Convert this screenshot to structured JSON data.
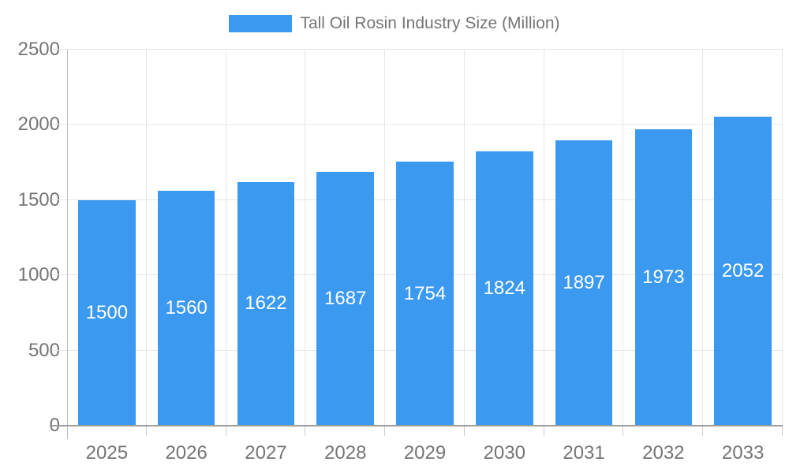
{
  "legend": {
    "label": "Tall Oil Rosin Industry Size (Million)"
  },
  "chart_data": {
    "type": "bar",
    "title": "",
    "legend_entries": [
      "Tall Oil Rosin Industry Size (Million)"
    ],
    "legend_position": "top-center",
    "categories": [
      "2025",
      "2026",
      "2027",
      "2028",
      "2029",
      "2030",
      "2031",
      "2032",
      "2033"
    ],
    "values": [
      1500,
      1560,
      1622,
      1687,
      1754,
      1824,
      1897,
      1973,
      2052
    ],
    "series": [
      {
        "name": "Tall Oil Rosin Industry Size (Million)",
        "values": [
          1500,
          1560,
          1622,
          1687,
          1754,
          1824,
          1897,
          1973,
          2052
        ]
      }
    ],
    "xlabel": "",
    "ylabel": "",
    "ylim": [
      0,
      2500
    ],
    "y_ticks": [
      0,
      500,
      1000,
      1500,
      2000,
      2500
    ],
    "grid": true,
    "bar_value_labels_shown": true,
    "colors": {
      "bar": "#3B99F0",
      "grid_line": "#E6E6E6",
      "axis_line": "#BDBDBD",
      "baseline": "#9E9E9E",
      "tick": "#CCCCCC",
      "axis_text": "#757575",
      "value_text": "#FFFFFF"
    }
  }
}
